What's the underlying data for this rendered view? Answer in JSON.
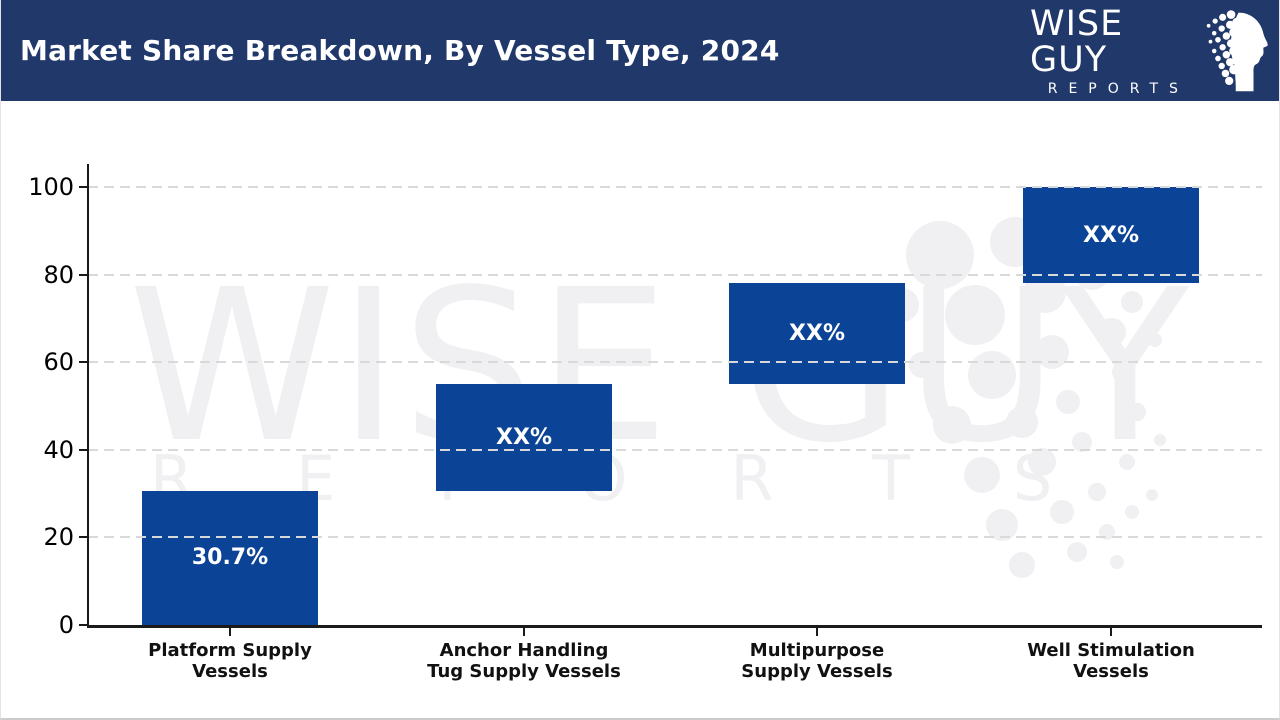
{
  "header": {
    "title": "Market Share Breakdown, By Vessel Type, 2024",
    "logo": {
      "brand_top": "WISE GUY",
      "brand_bottom": "REPORTS"
    }
  },
  "watermark": {
    "line1": "WISE GUY",
    "line2": "REPORTS"
  },
  "chart_data": {
    "type": "bar",
    "subtype": "waterfall",
    "title": "Market Share Breakdown, By Vessel Type, 2024",
    "categories": [
      "Platform Supply Vessels",
      "Anchor Handling Tug Supply Vessels",
      "Multipurpose Supply Vessels",
      "Well Stimulation Vessels"
    ],
    "category_lines": [
      [
        "Platform Supply",
        "Vessels"
      ],
      [
        "Anchor Handling",
        "Tug Supply Vessels"
      ],
      [
        "Multipurpose",
        "Supply Vessels"
      ],
      [
        "Well Stimulation",
        "Vessels"
      ]
    ],
    "segments": [
      {
        "start": 0,
        "end": 30.7,
        "label": "30.7%"
      },
      {
        "start": 30.7,
        "end": 55,
        "label": "XX%"
      },
      {
        "start": 55,
        "end": 78,
        "label": "XX%"
      },
      {
        "start": 78,
        "end": 100,
        "label": "XX%"
      }
    ],
    "yticks": [
      0,
      20,
      40,
      60,
      80,
      100
    ],
    "ylim": [
      0,
      105
    ],
    "grid": "horizontal-dashed",
    "legend": "none",
    "colors": {
      "bar": "#0b4396",
      "bar_label": "#ffffff",
      "header_bg": "#21386b",
      "grid": "#d9d9d9",
      "axis": "#1a1a1a",
      "watermark": "#f0f0f3"
    }
  }
}
